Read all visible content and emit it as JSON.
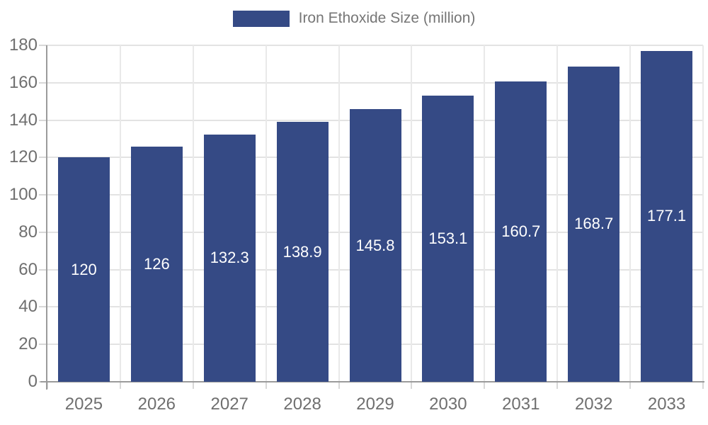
{
  "chart_data": {
    "type": "bar",
    "title": "Iron Ethoxide Size (million)",
    "legend": {
      "position": "top-center",
      "entries": [
        "Iron Ethoxide Size (million)"
      ]
    },
    "categories": [
      "2025",
      "2026",
      "2027",
      "2028",
      "2029",
      "2030",
      "2031",
      "2032",
      "2033"
    ],
    "values": [
      120,
      126,
      132.3,
      138.9,
      145.8,
      153.1,
      160.7,
      168.7,
      177.1
    ],
    "xlabel": "",
    "ylabel": "",
    "ylim": [
      0,
      180
    ],
    "ytick_step": 20,
    "yticks": [
      "0",
      "20",
      "40",
      "60",
      "80",
      "100",
      "120",
      "140",
      "160",
      "180"
    ],
    "grid": "on",
    "value_labels": "inside-center",
    "colors": {
      "bar": "#354A85",
      "value_label": "#ffffff",
      "axis_line": "#9b9b9b",
      "gridline": "#e3e3e3",
      "tick": "#d8d8d8",
      "tick_label": "#6f6f6f",
      "legend_text": "#767676",
      "background": "#ffffff"
    }
  }
}
